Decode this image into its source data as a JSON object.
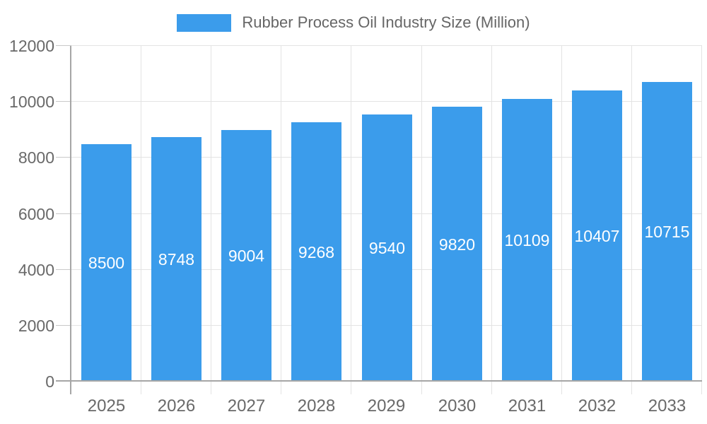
{
  "legend": {
    "label": "Rubber Process Oil Industry Size (Million)"
  },
  "colors": {
    "bar": "#3b9ceb",
    "grid": "#e3e3e3",
    "axis": "#a6a6a6",
    "y_tick_stub": "#c9c9c9",
    "axis_text": "#696969",
    "legend_text": "#666666",
    "value_text": "#ffffff",
    "background": "#ffffff"
  },
  "chart_data": {
    "type": "bar",
    "title": "Rubber Process Oil Industry Size (Million)",
    "categories": [
      "2025",
      "2026",
      "2027",
      "2028",
      "2029",
      "2030",
      "2031",
      "2032",
      "2033"
    ],
    "values": [
      8500,
      8748,
      9004,
      9268,
      9540,
      9820,
      10109,
      10407,
      10715
    ],
    "series_name": "Rubber Process Oil Industry Size (Million)",
    "xlabel": "",
    "ylabel": "",
    "ylim": [
      0,
      12000
    ],
    "ytick_interval": 2000,
    "ytick_labels": [
      "0",
      "2000",
      "4000",
      "6000",
      "8000",
      "10000",
      "12000"
    ],
    "grid": true,
    "legend_position": "top-center",
    "value_label_position": "inside-center"
  }
}
